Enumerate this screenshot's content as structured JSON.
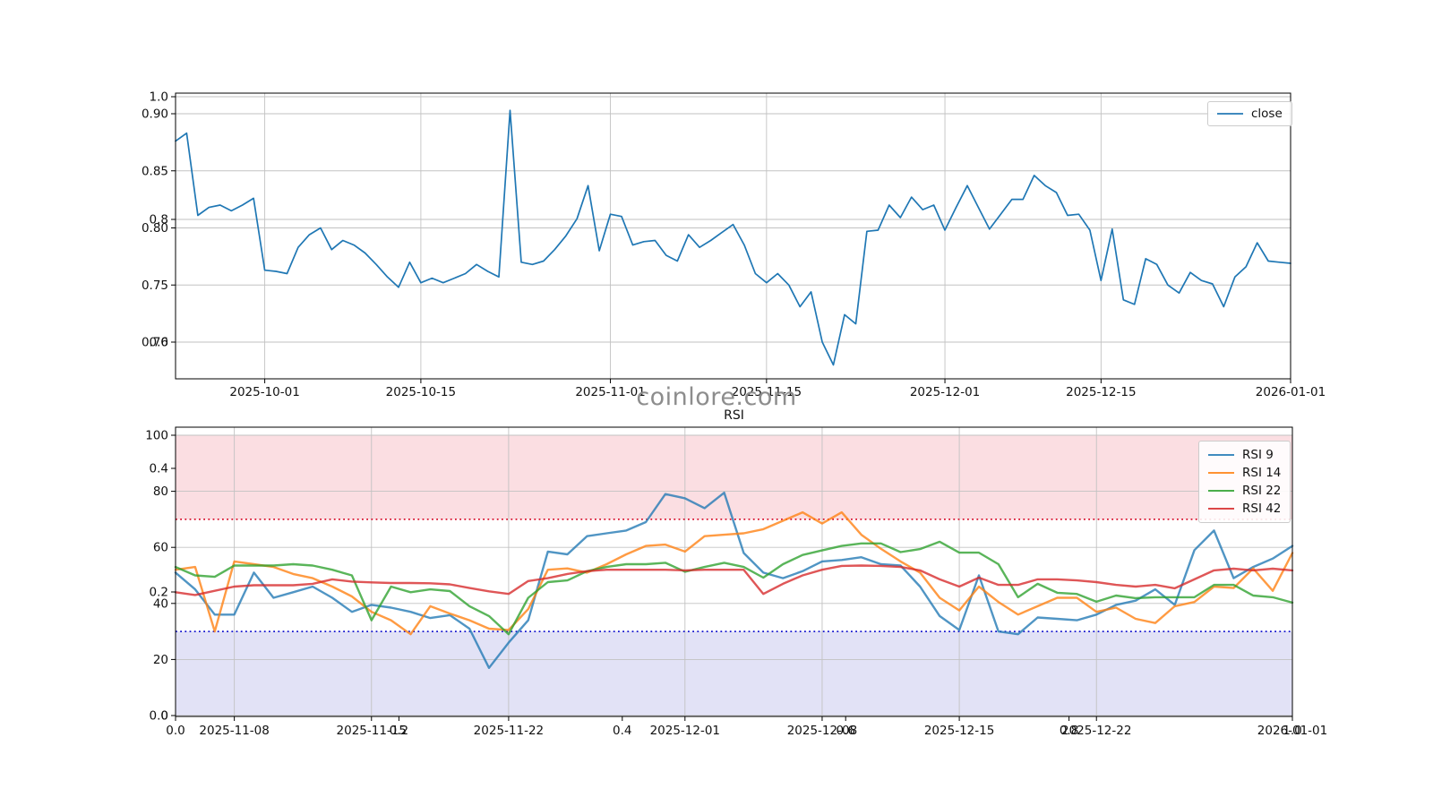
{
  "watermark": "coinlore.com",
  "panel2_title": "RSI",
  "colors": {
    "close": "#1f77b4",
    "rsi9": "#1f77b4",
    "rsi14": "#ff7f0e",
    "rsi22": "#2ca02c",
    "rsi42": "#d62728",
    "grid": "#c2c2c2",
    "spine": "#000000",
    "overbought_band": "#fbdee2",
    "oversold_band": "#e2e2f6",
    "overbought_line": "#d8112d",
    "oversold_line": "#1515cf",
    "watermark_gray": "#8d8d8d"
  },
  "legend_top": {
    "items": [
      {
        "label": "close",
        "color": "#1f77b4"
      }
    ]
  },
  "legend_rsi": {
    "items": [
      {
        "label": "RSI 9",
        "color": "#1f77b4"
      },
      {
        "label": "RSI 14",
        "color": "#ff7f0e"
      },
      {
        "label": "RSI 22",
        "color": "#2ca02c"
      },
      {
        "label": "RSI 42",
        "color": "#d62728"
      }
    ]
  },
  "chart_data": [
    {
      "type": "line",
      "title": "",
      "legend": [
        "close"
      ],
      "legend_position": "upper right",
      "grid": true,
      "start_date": "2025-09-23",
      "xticks": [
        "2025-10-01",
        "2025-10-15",
        "2025-11-01",
        "2025-11-15",
        "2025-12-01",
        "2025-12-15",
        "2026-01-01"
      ],
      "yticks": [
        "0.90",
        "0.85",
        "0.80",
        "0.75",
        "0.70"
      ],
      "yticks_secondary": [
        "1.0",
        "0.8",
        "0.6"
      ],
      "ylim": [
        0.668,
        0.918
      ],
      "series": [
        {
          "name": "close",
          "color": "#1f77b4",
          "values": [
            0.876,
            0.883,
            0.811,
            0.818,
            0.82,
            0.815,
            0.82,
            0.826,
            0.763,
            0.762,
            0.76,
            0.783,
            0.794,
            0.8,
            0.781,
            0.789,
            0.785,
            0.778,
            0.768,
            0.757,
            0.748,
            0.77,
            0.752,
            0.756,
            0.752,
            0.756,
            0.76,
            0.768,
            0.762,
            0.757,
            0.903,
            0.77,
            0.768,
            0.771,
            0.781,
            0.793,
            0.808,
            0.837,
            0.78,
            0.812,
            0.81,
            0.785,
            0.788,
            0.789,
            0.776,
            0.771,
            0.794,
            0.783,
            0.789,
            0.796,
            0.803,
            0.785,
            0.76,
            0.752,
            0.76,
            0.75,
            0.731,
            0.744,
            0.7,
            0.68,
            0.724,
            0.716,
            0.797,
            0.798,
            0.82,
            0.809,
            0.827,
            0.816,
            0.82,
            0.798,
            0.818,
            0.837,
            0.818,
            0.799,
            0.812,
            0.825,
            0.825,
            0.846,
            0.837,
            0.831,
            0.811,
            0.812,
            0.798,
            0.754,
            0.799,
            0.737,
            0.733,
            0.773,
            0.768,
            0.75,
            0.743,
            0.761,
            0.754,
            0.751,
            0.731,
            0.757,
            0.766,
            0.787,
            0.771,
            0.77,
            0.769
          ]
        }
      ]
    },
    {
      "type": "line",
      "title": "RSI",
      "legend": [
        "RSI 9",
        "RSI 14",
        "RSI 22",
        "RSI 42"
      ],
      "legend_position": "upper right",
      "grid": true,
      "start_date": "2025-11-05",
      "xticks": [
        "2025-11-08",
        "2025-11-15",
        "2025-11-22",
        "2025-12-01",
        "2025-12-08",
        "2025-12-15",
        "2025-12-22",
        "2026-01-01"
      ],
      "xticks_secondary": [
        "0.0",
        "0.2",
        "0.4",
        "0.6",
        "0.8",
        "1.0"
      ],
      "yticks": [
        "100",
        "80",
        "60",
        "40",
        "20",
        "0"
      ],
      "yticks_secondary": [
        "0.4",
        "0.2",
        "0.0"
      ],
      "ylim": [
        0,
        100
      ],
      "overbought_level": 70,
      "oversold_level": 30,
      "bands": [
        {
          "from": 70,
          "to": 100,
          "color": "#fbdee2"
        },
        {
          "from": 0,
          "to": 30,
          "color": "#e2e2f6"
        }
      ],
      "series": [
        {
          "name": "RSI 9",
          "color": "#1f77b4",
          "values": [
            51,
            45,
            36,
            36,
            51,
            42,
            44,
            46,
            42,
            37,
            39.5,
            38.5,
            37,
            34.8,
            35.8,
            31,
            17,
            26,
            34,
            58.5,
            57.5,
            64,
            65,
            66,
            69,
            79,
            77.5,
            74,
            79.5,
            58,
            51,
            49,
            51.5,
            55,
            55.5,
            56.5,
            54,
            53.5,
            46,
            35.5,
            30.5,
            50,
            30,
            29,
            35,
            34.5,
            34,
            36,
            39.5,
            41,
            45,
            39.5,
            59,
            66,
            49,
            53,
            56,
            60.5
          ]
        },
        {
          "name": "RSI 14",
          "color": "#ff7f0e",
          "values": [
            52,
            53,
            30,
            55,
            54,
            53,
            50.5,
            49,
            46,
            42.5,
            37,
            34,
            29,
            39,
            36.4,
            34,
            31,
            30.5,
            38,
            52,
            52.5,
            51,
            54,
            57.5,
            60.5,
            61,
            58.5,
            64,
            64.5,
            65,
            66.5,
            69.5,
            72.5,
            68.5,
            72.5,
            64.5,
            59.5,
            55,
            51,
            42,
            37.5,
            46,
            40.5,
            36,
            39,
            42,
            42,
            37,
            38.5,
            34.5,
            33,
            39,
            40.5,
            46,
            45.5,
            52.5,
            44.5,
            58
          ]
        },
        {
          "name": "RSI 22",
          "color": "#2ca02c",
          "values": [
            53,
            50,
            49.5,
            53.5,
            53.5,
            53.5,
            54,
            53.5,
            52,
            50,
            34,
            46,
            44,
            45,
            44.4,
            39,
            35.5,
            29,
            42,
            47.6,
            48.2,
            51.5,
            53,
            54,
            54,
            54.5,
            51.3,
            53,
            54.5,
            53,
            49.2,
            54,
            57.3,
            58.9,
            60.5,
            61.4,
            61.4,
            58.3,
            59.4,
            62,
            58.1,
            58.1,
            54,
            42.2,
            47,
            43.8,
            43.4,
            40.6,
            42.8,
            41.9,
            42.2,
            42.2,
            42.2,
            46.6,
            46.6,
            42.8,
            42.2,
            40.3
          ]
        },
        {
          "name": "RSI 42",
          "color": "#d62728",
          "values": [
            44,
            43,
            44.5,
            46,
            46.5,
            46.5,
            46.5,
            47,
            48.6,
            47.8,
            47.5,
            47.3,
            47.3,
            47.2,
            46.8,
            45.5,
            44.3,
            43.4,
            48,
            49,
            50.5,
            51.5,
            52,
            52,
            52,
            52,
            51.8,
            52,
            52,
            52,
            43.4,
            47,
            50,
            52,
            53.4,
            53.5,
            53.4,
            53,
            51.8,
            48.6,
            46,
            49.2,
            46.6,
            46.6,
            48.6,
            48.6,
            48.2,
            47.6,
            46.6,
            46,
            46.6,
            45.4,
            48.6,
            51.8,
            52.4,
            51.8,
            52.4,
            51.8
          ]
        }
      ]
    }
  ]
}
